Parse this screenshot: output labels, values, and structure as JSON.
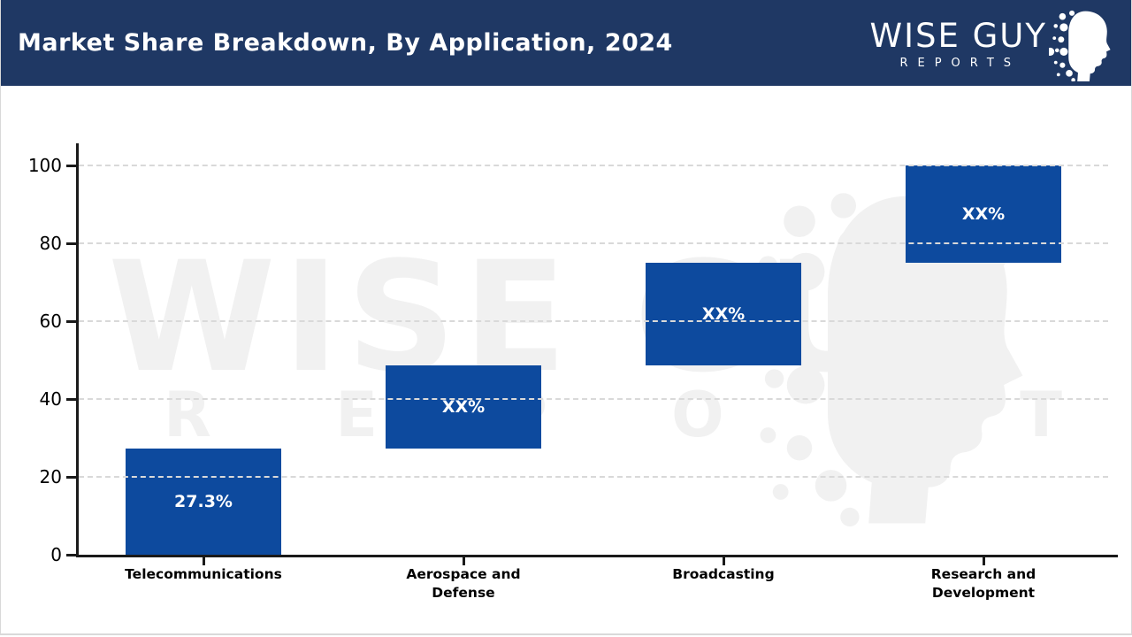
{
  "header": {
    "title": "Market Share Breakdown, By Application, 2024",
    "logo": {
      "line1": "WISE GUY",
      "line2": "REPORTS"
    }
  },
  "watermark": {
    "line1": "WISE GUY",
    "line2": "R E P O R T S"
  },
  "colors": {
    "header_bg": "#1f3864",
    "bar": "#0d4a9e",
    "gridline": "#d9d9d9",
    "axis": "#1a1a1a",
    "bar_label": "#ffffff",
    "watermark": "#f1f1f1"
  },
  "chart_data": {
    "type": "bar",
    "subtype": "waterfall-floating-bars",
    "title": "Market Share Breakdown, By Application, 2024",
    "categories": [
      "Telecommunications",
      "Aerospace and Defense",
      "Broadcasting",
      "Research and Development"
    ],
    "segments": [
      {
        "category": "Telecommunications",
        "lines": [
          "Telecommunications"
        ],
        "start": 0,
        "end": 27.3,
        "label": "27.3%"
      },
      {
        "category": "Aerospace and Defense",
        "lines": [
          "Aerospace and",
          "Defense"
        ],
        "start": 27.3,
        "end": 48.6,
        "label": "XX%"
      },
      {
        "category": "Broadcasting",
        "lines": [
          "Broadcasting"
        ],
        "start": 48.6,
        "end": 75,
        "label": "XX%"
      },
      {
        "category": "Research and Development",
        "lines": [
          "Research and",
          "Development"
        ],
        "start": 75,
        "end": 100,
        "label": "XX%"
      }
    ],
    "yticks": [
      0,
      20,
      40,
      60,
      80,
      100
    ],
    "ylim": [
      0,
      105
    ],
    "xlabel": "",
    "ylabel": "",
    "grid": "horizontal-dashed",
    "legend": "none"
  }
}
